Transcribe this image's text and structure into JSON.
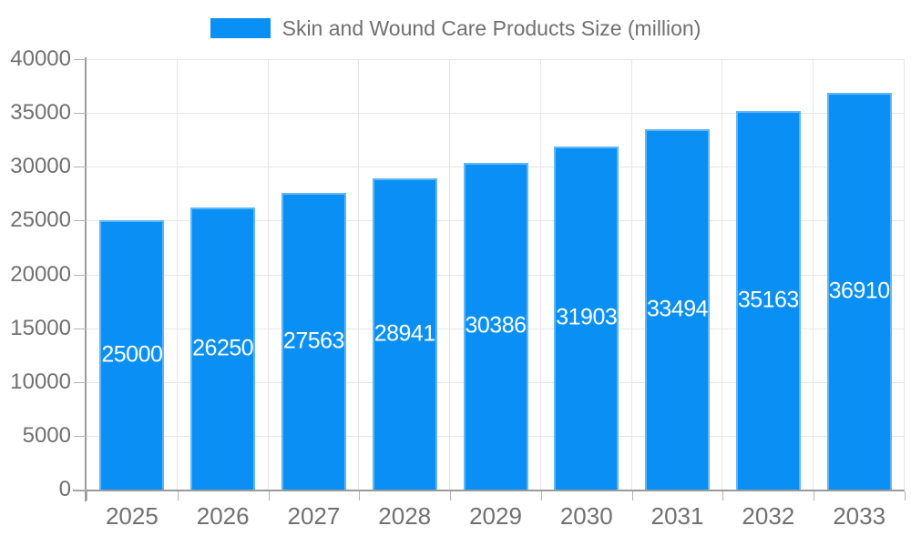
{
  "legend": {
    "label": "Skin and Wound Care Products Size (million)"
  },
  "chart_data": {
    "type": "bar",
    "title": "Skin and Wound Care Products Size (million)",
    "categories": [
      "2025",
      "2026",
      "2027",
      "2028",
      "2029",
      "2030",
      "2031",
      "2032",
      "2033"
    ],
    "values": [
      25000,
      26250,
      27563,
      28941,
      30386,
      31903,
      33494,
      35163,
      36910
    ],
    "series": [
      {
        "name": "Skin and Wound Care Products Size (million)",
        "values": [
          25000,
          26250,
          27563,
          28941,
          30386,
          31903,
          33494,
          35163,
          36910
        ]
      }
    ],
    "xlabel": "",
    "ylabel": "",
    "ylim": [
      0,
      40000
    ],
    "yticks": [
      0,
      5000,
      10000,
      15000,
      20000,
      25000,
      30000,
      35000,
      40000
    ],
    "grid": true,
    "legend_position": "top",
    "bar_value_labels": "inside-center"
  },
  "colors": {
    "bar": "#0a90f4",
    "grid": "#e6e6e6",
    "axis": "#9a9a9a",
    "tick": "#b3b3b3",
    "text": "#707070",
    "value_label": "#ffffff",
    "background": "#ffffff"
  }
}
